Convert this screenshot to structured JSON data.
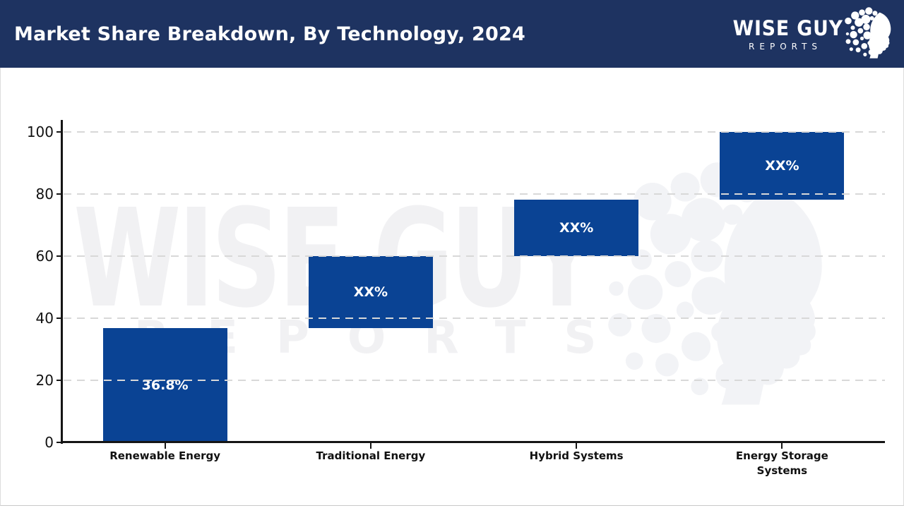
{
  "header": {
    "title": "Market Share Breakdown, By Technology, 2024",
    "bg_color": "#1e3361",
    "logo": {
      "line1": "WISE GUY",
      "line2": "REPORTS"
    }
  },
  "watermark": {
    "line1": "WISE GUY",
    "line2": "REPORTS"
  },
  "chart_data": {
    "type": "bar",
    "variant": "waterfall",
    "title": "Market Share Breakdown, By Technology, 2024",
    "categories": [
      "Renewable Energy",
      "Traditional Energy",
      "Hybrid Systems",
      "Energy Storage\nSystems"
    ],
    "segments": [
      {
        "category": "Renewable Energy",
        "start": 0,
        "end": 36.8,
        "label": "36.8%"
      },
      {
        "category": "Traditional Energy",
        "start": 36.8,
        "end": 60,
        "label": "XX%"
      },
      {
        "category": "Hybrid Systems",
        "start": 60,
        "end": 78.2,
        "label": "XX%"
      },
      {
        "category": "Energy Storage Systems",
        "start": 78.2,
        "end": 100,
        "label": "XX%"
      }
    ],
    "yticks": [
      0,
      20,
      40,
      60,
      80,
      100
    ],
    "ylim": [
      0,
      104
    ],
    "xlabel": "",
    "ylabel": "",
    "grid": {
      "style": "dashed",
      "color": "#d8d8d8",
      "axis": "y"
    },
    "bar_color": "#0a4394",
    "bar_label_color": "#ffffff",
    "legend": null
  }
}
